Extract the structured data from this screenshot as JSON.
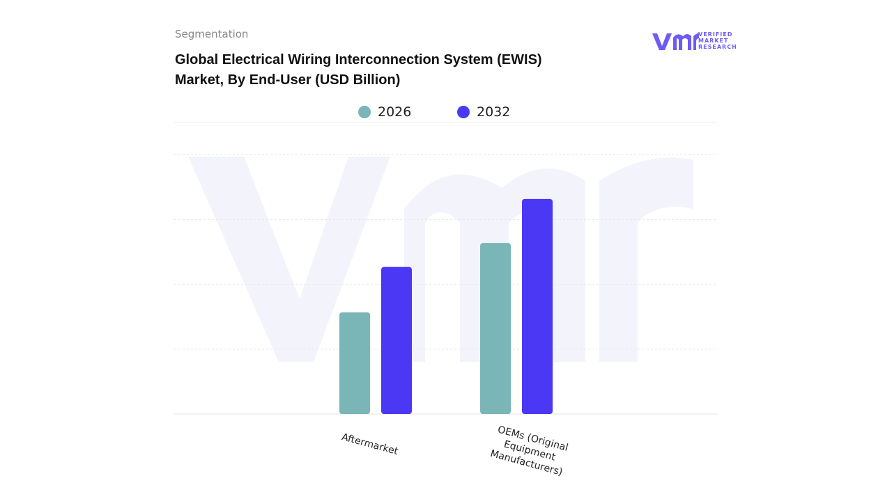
{
  "header": {
    "section": "Segmentation",
    "logo": [
      "VERIFIED",
      "MARKET",
      "RESEARCH"
    ]
  },
  "chart_data": {
    "type": "bar",
    "title": "Global Electrical Wiring Interconnection System (EWIS) Market, By End-User (USD Billion)",
    "categories": [
      "Aftermarket",
      "OEMs (Original Equipment Manufacturers)"
    ],
    "series": [
      {
        "name": "2026",
        "color": "#7ab5b8",
        "values": [
          1.57,
          2.64
        ]
      },
      {
        "name": "2032",
        "color": "#4b38f5",
        "values": [
          2.27,
          3.32
        ]
      }
    ],
    "ylim": [
      0,
      4.5
    ],
    "yticks": [
      0,
      1,
      2,
      3,
      4
    ],
    "grid": true
  }
}
